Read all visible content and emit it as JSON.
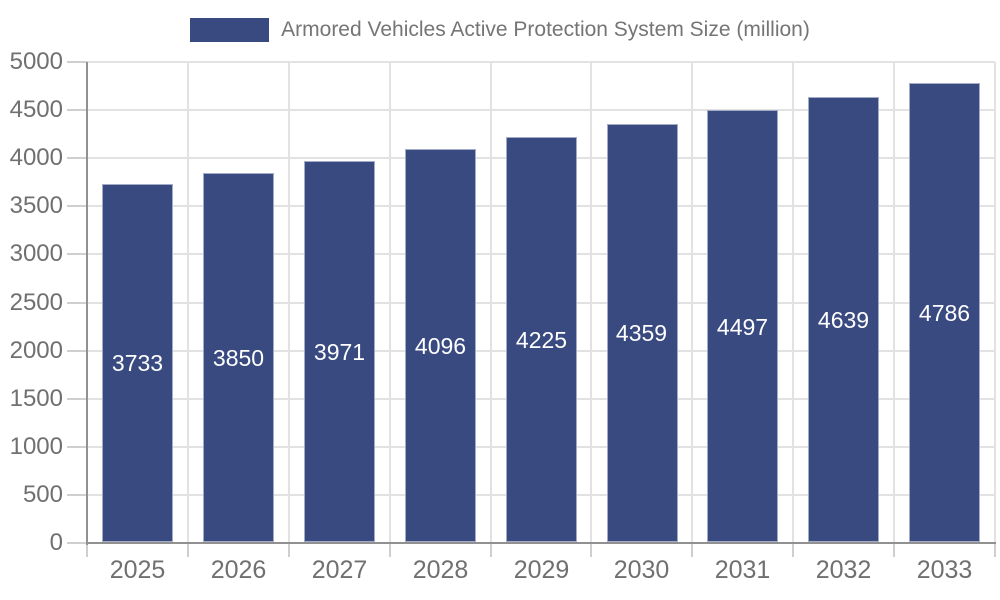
{
  "legend": {
    "items": [
      {
        "label": "Armored Vehicles Active Protection System Size (million)",
        "color": "#394A80"
      }
    ]
  },
  "chart_data": {
    "type": "bar",
    "title": "Armored Vehicles Active Protection System Size (million)",
    "categories": [
      "2025",
      "2026",
      "2027",
      "2028",
      "2029",
      "2030",
      "2031",
      "2032",
      "2033"
    ],
    "series": [
      {
        "name": "Armored Vehicles Active Protection System Size (million)",
        "values": [
          3733,
          3850,
          3971,
          4096,
          4225,
          4359,
          4497,
          4639,
          4786
        ]
      }
    ],
    "xlabel": "",
    "ylabel": "",
    "ylim": [
      0,
      5000
    ],
    "ytick_step": 500,
    "grid": true,
    "legend_position": "top-center",
    "value_labels": "inside-center",
    "colors": {
      "bar": "#394A80",
      "bar_border": "#A3ABC6",
      "grid": "#E2E2E2",
      "tick": "#CFCFCF",
      "axis": "#919191",
      "axis_text": "#707070",
      "value_label_text": "#FFFFFF",
      "legend_text": "#757575",
      "background": "#FFFFFF"
    }
  }
}
